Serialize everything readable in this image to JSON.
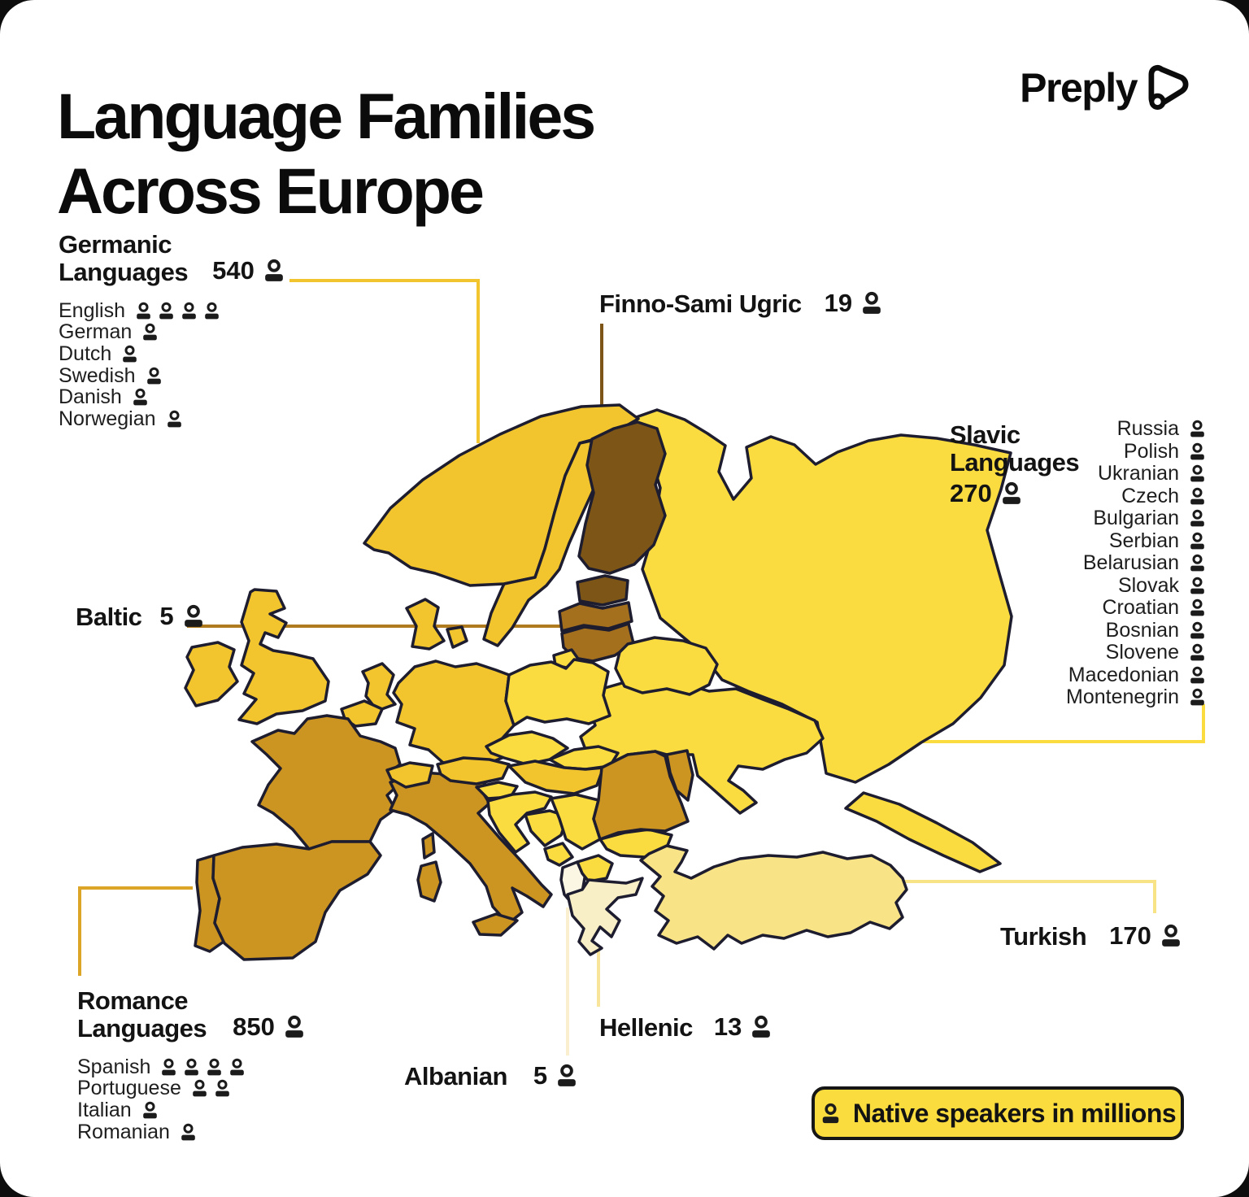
{
  "title": {
    "line1": "Language Families",
    "line2": "Across Europe"
  },
  "logo": {
    "text": "Preply"
  },
  "legend": {
    "label": "Native speakers in millions",
    "bg": "#FBDC3F"
  },
  "map": {
    "stroke": "#1D1D2F",
    "sea": "#FFFFFF"
  },
  "families": {
    "germanic": {
      "name_line1": "Germanic",
      "name_line2": "Languages",
      "value": "540",
      "color": "#F2C52F",
      "languages": [
        {
          "name": "English",
          "icons": 4
        },
        {
          "name": "German",
          "icons": 1
        },
        {
          "name": "Dutch",
          "icons": 1
        },
        {
          "name": "Swedish",
          "icons": 1
        },
        {
          "name": "Danish",
          "icons": 1
        },
        {
          "name": "Norwegian",
          "icons": 1
        }
      ]
    },
    "romance": {
      "name_line1": "Romance",
      "name_line2": "Languages",
      "value": "850",
      "color": "#CC9421",
      "line_color": "#DCA528",
      "languages": [
        {
          "name": "Spanish",
          "icons": 4
        },
        {
          "name": "Portuguese",
          "icons": 2
        },
        {
          "name": "Italian",
          "icons": 1
        },
        {
          "name": "Romanian",
          "icons": 1
        }
      ]
    },
    "slavic": {
      "name_line1": "Slavic",
      "name_line2": "Languages",
      "value": "270",
      "color": "#FBDC40",
      "languages": [
        {
          "name": "Russia",
          "icons": 1
        },
        {
          "name": "Polish",
          "icons": 1
        },
        {
          "name": "Ukranian",
          "icons": 1
        },
        {
          "name": "Czech",
          "icons": 1
        },
        {
          "name": "Bulgarian",
          "icons": 1
        },
        {
          "name": "Serbian",
          "icons": 1
        },
        {
          "name": "Belarusian",
          "icons": 1
        },
        {
          "name": "Slovak",
          "icons": 1
        },
        {
          "name": "Croatian",
          "icons": 1
        },
        {
          "name": "Bosnian",
          "icons": 1
        },
        {
          "name": "Slovene",
          "icons": 1
        },
        {
          "name": "Macedonian",
          "icons": 1
        },
        {
          "name": "Montenegrin",
          "icons": 1
        }
      ]
    },
    "finno_sami_ugric": {
      "name": "Finno-Sami Ugric",
      "value": "19",
      "color": "#7D5617"
    },
    "baltic": {
      "name": "Baltic",
      "value": "5",
      "color": "#A5701E",
      "line_color": "#B07A1F"
    },
    "turkish": {
      "name": "Turkish",
      "value": "170",
      "color": "#F9E387"
    },
    "hellenic": {
      "name": "Hellenic",
      "value": "13",
      "color": "#F8EFC6",
      "line_color": "#F8E59B"
    },
    "albanian": {
      "name": "Albanian",
      "value": "5",
      "color": "#FBF6E4",
      "line_color": "#FAF0D0"
    }
  }
}
